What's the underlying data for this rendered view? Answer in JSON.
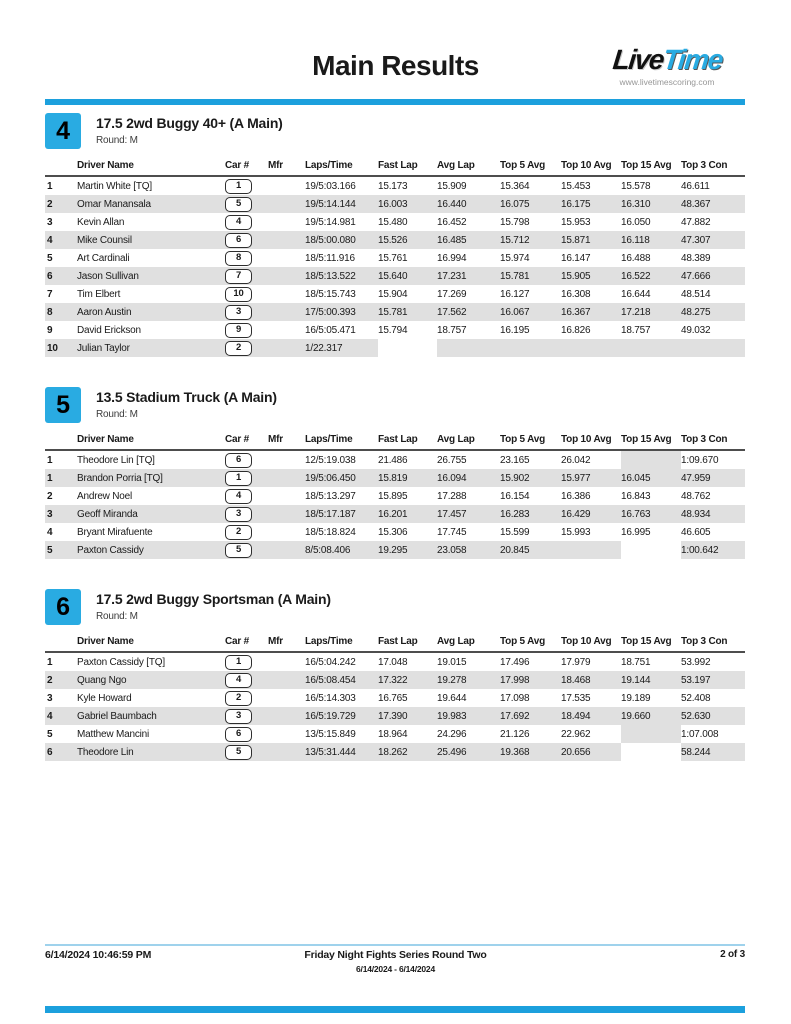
{
  "header": {
    "title": "Main Results",
    "logo_live": "Live",
    "logo_time": "Time",
    "logo_url": "www.livetimescoring.com"
  },
  "colors": {
    "accent_blue": "#29ABE2",
    "bar_blue": "#1CA0DD",
    "row_stripe": "#E0E0E0",
    "footer_line_blue": "#9FD2EC"
  },
  "columns": [
    "",
    "Driver Name",
    "Car #",
    "Mfr",
    "Laps/Time",
    "Fast Lap",
    "Avg Lap",
    "Top 5 Avg",
    "Top 10 Avg",
    "Top 15 Avg",
    "Top 3 Con"
  ],
  "sections": [
    {
      "number": "4",
      "title": "17.5 2wd Buggy 40+ (A Main)",
      "round": "Round: M",
      "rows": [
        {
          "rank": "1",
          "name": "Martin White [TQ]",
          "car": "1",
          "mfr": "",
          "laps": "19/5:03.166",
          "fast": "15.173",
          "avg": "15.909",
          "t5": "15.364",
          "t10": "15.453",
          "t15": "15.578",
          "t3": "46.611"
        },
        {
          "rank": "2",
          "name": "Omar Manansala",
          "car": "5",
          "mfr": "",
          "laps": "19/5:14.144",
          "fast": "16.003",
          "avg": "16.440",
          "t5": "16.075",
          "t10": "16.175",
          "t15": "16.310",
          "t3": "48.367"
        },
        {
          "rank": "3",
          "name": "Kevin Allan",
          "car": "4",
          "mfr": "",
          "laps": "19/5:14.981",
          "fast": "15.480",
          "avg": "16.452",
          "t5": "15.798",
          "t10": "15.953",
          "t15": "16.050",
          "t3": "47.882"
        },
        {
          "rank": "4",
          "name": "Mike Counsil",
          "car": "6",
          "mfr": "",
          "laps": "18/5:00.080",
          "fast": "15.526",
          "avg": "16.485",
          "t5": "15.712",
          "t10": "15.871",
          "t15": "16.118",
          "t3": "47.307"
        },
        {
          "rank": "5",
          "name": "Art Cardinali",
          "car": "8",
          "mfr": "",
          "laps": "18/5:11.916",
          "fast": "15.761",
          "avg": "16.994",
          "t5": "15.974",
          "t10": "16.147",
          "t15": "16.488",
          "t3": "48.389"
        },
        {
          "rank": "6",
          "name": "Jason Sullivan",
          "car": "7",
          "mfr": "",
          "laps": "18/5:13.522",
          "fast": "15.640",
          "avg": "17.231",
          "t5": "15.781",
          "t10": "15.905",
          "t15": "16.522",
          "t3": "47.666"
        },
        {
          "rank": "7",
          "name": "Tim Elbert",
          "car": "10",
          "mfr": "",
          "laps": "18/5:15.743",
          "fast": "15.904",
          "avg": "17.269",
          "t5": "16.127",
          "t10": "16.308",
          "t15": "16.644",
          "t3": "48.514"
        },
        {
          "rank": "8",
          "name": "Aaron Austin",
          "car": "3",
          "mfr": "",
          "laps": "17/5:00.393",
          "fast": "15.781",
          "avg": "17.562",
          "t5": "16.067",
          "t10": "16.367",
          "t15": "17.218",
          "t3": "48.275"
        },
        {
          "rank": "9",
          "name": "David Erickson",
          "car": "9",
          "mfr": "",
          "laps": "16/5:05.471",
          "fast": "15.794",
          "avg": "18.757",
          "t5": "16.195",
          "t10": "16.826",
          "t15": "18.757",
          "t3": "49.032"
        },
        {
          "rank": "10",
          "name": "Julian Taylor",
          "car": "2",
          "mfr": "",
          "laps": "1/22.317",
          "fast": "",
          "avg": "",
          "t5": "",
          "t10": "",
          "t15": "",
          "t3": "",
          "no_invert": [
            "avg",
            "t5",
            "t10",
            "t15",
            "t3"
          ]
        }
      ]
    },
    {
      "number": "5",
      "title": "13.5 Stadium Truck (A Main)",
      "round": "Round: M",
      "rows": [
        {
          "rank": "1",
          "name": "Theodore Lin [TQ]",
          "car": "6",
          "mfr": "",
          "laps": "12/5:19.038",
          "fast": "21.486",
          "avg": "26.755",
          "t5": "23.165",
          "t10": "26.042",
          "t15": "",
          "t3": "1:09.670"
        },
        {
          "rank": "1",
          "name": "Brandon Porria [TQ]",
          "car": "1",
          "mfr": "",
          "laps": "19/5:06.450",
          "fast": "15.819",
          "avg": "16.094",
          "t5": "15.902",
          "t10": "15.977",
          "t15": "16.045",
          "t3": "47.959"
        },
        {
          "rank": "2",
          "name": "Andrew Noel",
          "car": "4",
          "mfr": "",
          "laps": "18/5:13.297",
          "fast": "15.895",
          "avg": "17.288",
          "t5": "16.154",
          "t10": "16.386",
          "t15": "16.843",
          "t3": "48.762"
        },
        {
          "rank": "3",
          "name": "Geoff Miranda",
          "car": "3",
          "mfr": "",
          "laps": "18/5:17.187",
          "fast": "16.201",
          "avg": "17.457",
          "t5": "16.283",
          "t10": "16.429",
          "t15": "16.763",
          "t3": "48.934"
        },
        {
          "rank": "4",
          "name": "Bryant Mirafuente",
          "car": "2",
          "mfr": "",
          "laps": "18/5:18.824",
          "fast": "15.306",
          "avg": "17.745",
          "t5": "15.599",
          "t10": "15.993",
          "t15": "16.995",
          "t3": "46.605"
        },
        {
          "rank": "5",
          "name": "Paxton Cassidy",
          "car": "5",
          "mfr": "",
          "laps": "8/5:08.406",
          "fast": "19.295",
          "avg": "23.058",
          "t5": "20.845",
          "t10": "",
          "t15": "",
          "t3": "1:00.642",
          "no_invert": [
            "t10"
          ]
        }
      ]
    },
    {
      "number": "6",
      "title": "17.5 2wd Buggy Sportsman  (A Main)",
      "round": "Round: M",
      "rows": [
        {
          "rank": "1",
          "name": "Paxton Cassidy [TQ]",
          "car": "1",
          "mfr": "",
          "laps": "16/5:04.242",
          "fast": "17.048",
          "avg": "19.015",
          "t5": "17.496",
          "t10": "17.979",
          "t15": "18.751",
          "t3": "53.992"
        },
        {
          "rank": "2",
          "name": "Quang Ngo",
          "car": "4",
          "mfr": "",
          "laps": "16/5:08.454",
          "fast": "17.322",
          "avg": "19.278",
          "t5": "17.998",
          "t10": "18.468",
          "t15": "19.144",
          "t3": "53.197"
        },
        {
          "rank": "3",
          "name": "Kyle Howard",
          "car": "2",
          "mfr": "",
          "laps": "16/5:14.303",
          "fast": "16.765",
          "avg": "19.644",
          "t5": "17.098",
          "t10": "17.535",
          "t15": "19.189",
          "t3": "52.408"
        },
        {
          "rank": "4",
          "name": "Gabriel Baumbach",
          "car": "3",
          "mfr": "",
          "laps": "16/5:19.729",
          "fast": "17.390",
          "avg": "19.983",
          "t5": "17.692",
          "t10": "18.494",
          "t15": "19.660",
          "t3": "52.630"
        },
        {
          "rank": "5",
          "name": "Matthew Mancini",
          "car": "6",
          "mfr": "",
          "laps": "13/5:15.849",
          "fast": "18.964",
          "avg": "24.296",
          "t5": "21.126",
          "t10": "22.962",
          "t15": "",
          "t3": "1:07.008"
        },
        {
          "rank": "6",
          "name": "Theodore Lin",
          "car": "5",
          "mfr": "",
          "laps": "13/5:31.444",
          "fast": "18.262",
          "avg": "25.496",
          "t5": "19.368",
          "t10": "20.656",
          "t15": "",
          "t3": "58.244"
        }
      ]
    }
  ],
  "footer": {
    "printed": "6/14/2024 10:46:59 PM",
    "event": "Friday Night Fights Series Round Two",
    "dates": "6/14/2024 - 6/14/2024",
    "page": "2 of 3"
  }
}
